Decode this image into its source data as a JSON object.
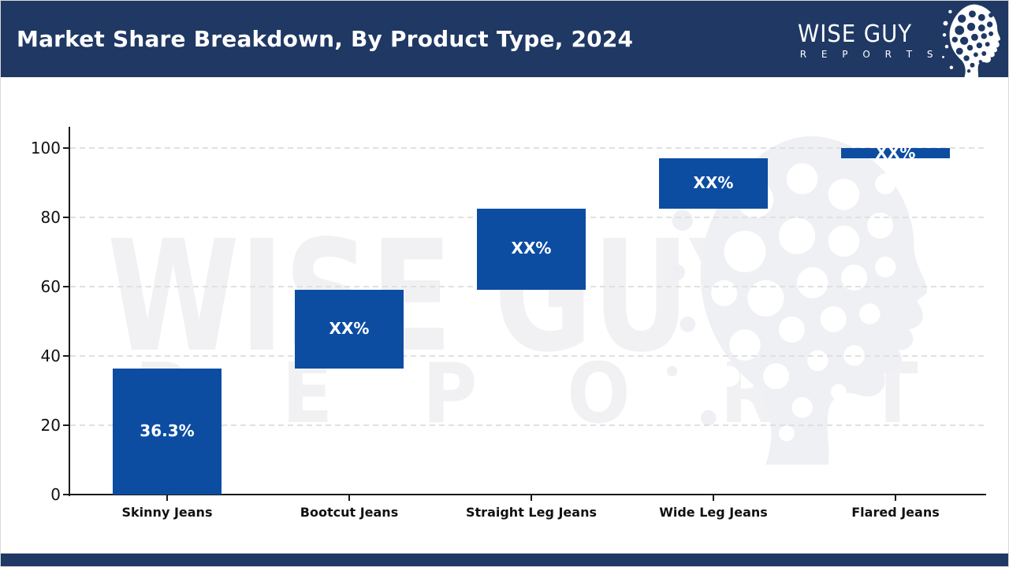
{
  "header": {
    "title": "Market Share Breakdown, By Product Type, 2024",
    "logo": {
      "line1": "WISE GUY",
      "line2": "R E P O R T S"
    },
    "bg_color": "#1f3864"
  },
  "watermark": {
    "line1": "WISE GUY",
    "line2": "R E P O R T S"
  },
  "chart_data": {
    "type": "bar",
    "subtype": "waterfall",
    "title": "Market Share Breakdown, By Product Type, 2024",
    "xlabel": "",
    "ylabel": "",
    "ylim": [
      0,
      105
    ],
    "yticks": [
      0,
      20,
      40,
      60,
      80,
      100
    ],
    "grid": "horizontal-dashed",
    "legend": "none",
    "bar_color": "#0c4da2",
    "categories": [
      "Skinny Jeans",
      "Bootcut Jeans",
      "Straight Leg Jeans",
      "Wide Leg Jeans",
      "Flared Jeans"
    ],
    "segments": [
      {
        "category": "Skinny Jeans",
        "start": 0,
        "end": 36.3,
        "label": "36.3%"
      },
      {
        "category": "Bootcut Jeans",
        "start": 36.3,
        "end": 59.1,
        "label": "XX%"
      },
      {
        "category": "Straight Leg Jeans",
        "start": 59.1,
        "end": 82.5,
        "label": "XX%"
      },
      {
        "category": "Wide Leg Jeans",
        "start": 82.5,
        "end": 97.0,
        "label": "XX%"
      },
      {
        "category": "Flared Jeans",
        "start": 97.0,
        "end": 100.0,
        "label": "XX%"
      }
    ]
  },
  "footer": {
    "bg_color": "#1f3864"
  }
}
